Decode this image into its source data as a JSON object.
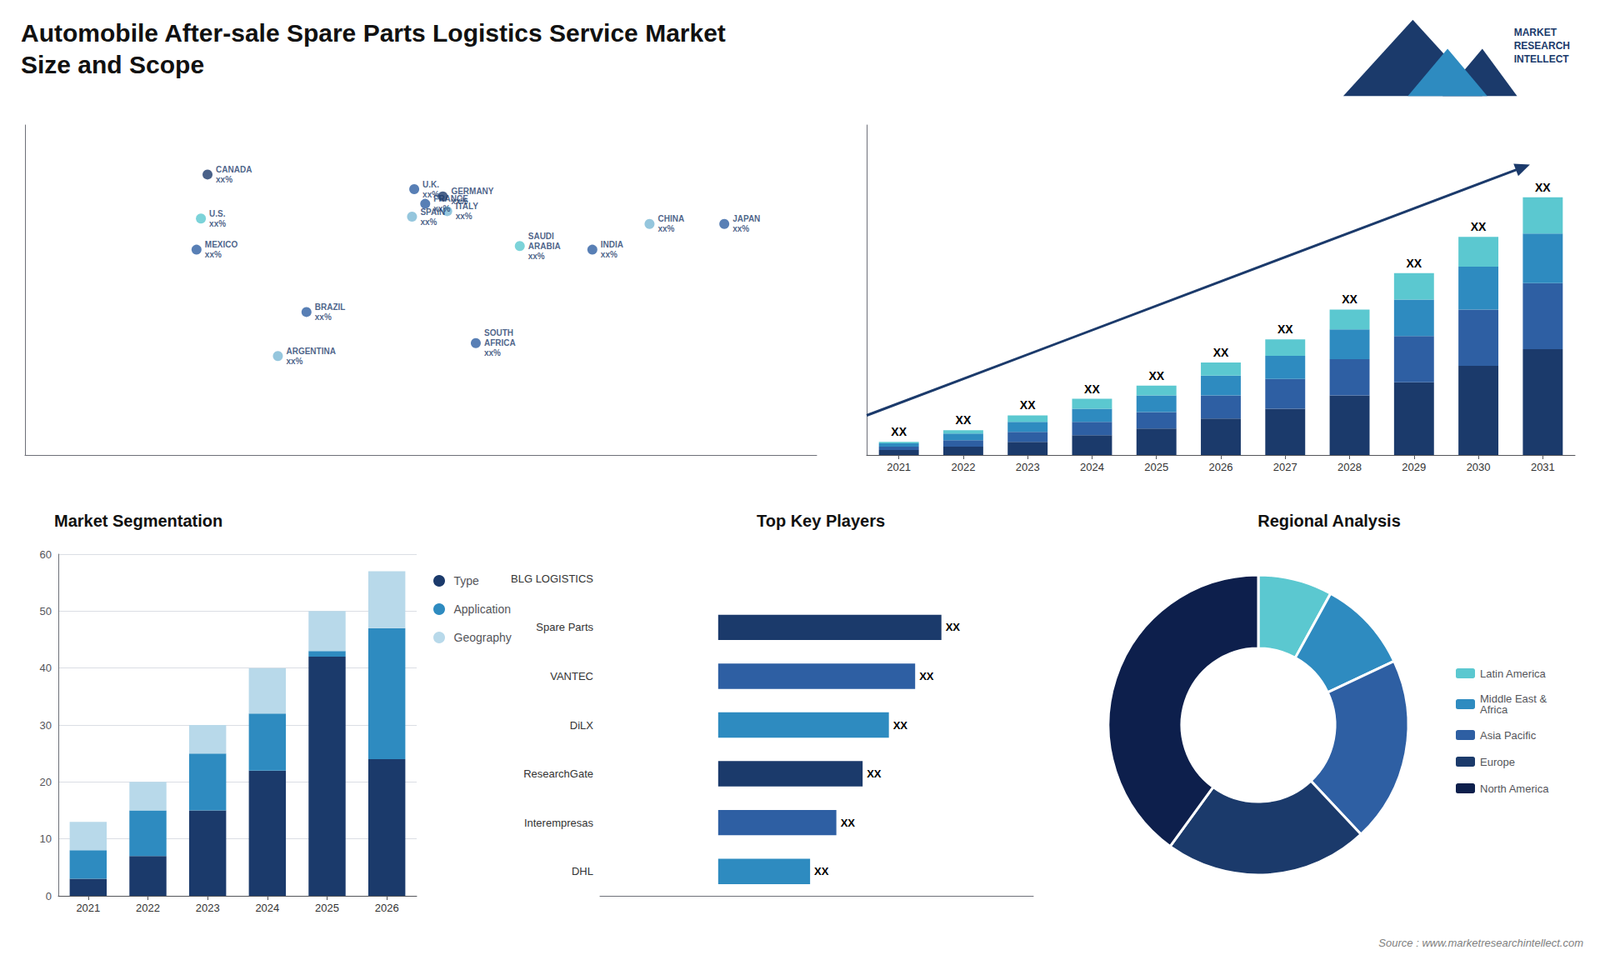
{
  "title": "Automobile After-sale Spare Parts Logistics Service Market\nSize and Scope",
  "annotations": [
    "MARKET\nRESEARCH\nINTELLECT",
    "Source : www.marketresearchintellect.com"
  ],
  "chart_data": [
    {
      "type": "map",
      "labels": [
        "CANADA\nxx%",
        "U.S.\nxx%",
        "MEXICO\nxx%",
        "BRAZIL\nxx%",
        "ARGENTINA\nxx%",
        "U.K.\nxx%",
        "FRANCE\nxx%",
        "SPAIN\nxx%",
        "GERMANY\nxx%",
        "ITALY\nxx%",
        "SAUDI\nARABIA\nxx%",
        "SOUTH\nAFRICA\nxx%",
        "INDIA\nxx%",
        "CHINA\nxx%",
        "JAPAN\nxx%"
      ],
      "x": [
        -97,
        -100,
        -102,
        -52,
        -65,
        -3,
        2,
        -4,
        10,
        12,
        45,
        25,
        78,
        104,
        138
      ],
      "values": [
        63,
        39,
        22,
        -12,
        -36,
        55,
        47,
        40,
        51,
        43,
        24,
        -29,
        22,
        36,
        36
      ],
      "colors": [
        "#1b3a6b",
        "#5bc8d0",
        "#2e5fa3",
        "#2e5fa3",
        "#7ab8d4",
        "#2e5fa3",
        "#2e5fa3",
        "#7ab8d4",
        "#1b3a6b",
        "#7ab8d4",
        "#5bc8d0",
        "#2e5fa3",
        "#2e5fa3",
        "#7ab8d4",
        "#2e5fa3"
      ],
      "xlim": [
        -180,
        180
      ],
      "ylim": [
        -90,
        90
      ],
      "tick_labels": false,
      "grid": false
    },
    {
      "type": "bar",
      "stacked": true,
      "categories": [
        "2021",
        "2022",
        "2023",
        "2024",
        "2025",
        "2026",
        "2027",
        "2028",
        "2029",
        "2030",
        "2031"
      ],
      "series": [
        {
          "color": "#1b3a6b",
          "values": [
            1.5,
            2.5,
            4,
            6,
            8,
            11,
            14,
            18,
            22,
            27,
            32
          ]
        },
        {
          "color": "#2e5fa3",
          "values": [
            1,
            2,
            3,
            4,
            5,
            7,
            9,
            11,
            14,
            17,
            20
          ]
        },
        {
          "color": "#2e8bc0",
          "values": [
            1,
            2,
            3,
            4,
            5,
            6,
            7,
            9,
            11,
            13,
            15
          ]
        },
        {
          "color": "#5bc8d0",
          "values": [
            0.5,
            1,
            2,
            3,
            3,
            4,
            5,
            6,
            8,
            9,
            11
          ]
        }
      ],
      "total_labels": [
        "XX",
        "XX",
        "XX",
        "XX",
        "XX",
        "XX",
        "XX",
        "XX",
        "XX",
        "XX",
        "XX"
      ],
      "ylim": [
        0,
        99.84
      ],
      "yticks": [],
      "tick_labels": "x",
      "grid": false
    },
    {
      "type": "bar",
      "stacked": true,
      "title": "Market Segmentation",
      "categories": [
        "2021",
        "2022",
        "2023",
        "2024",
        "2025",
        "2026"
      ],
      "series": [
        {
          "name": "Type",
          "color": "#1b3a6b",
          "values": [
            3,
            7,
            15,
            22,
            42,
            24
          ]
        },
        {
          "name": "Application",
          "color": "#2e8bc0",
          "values": [
            5,
            8,
            10,
            10,
            1,
            23
          ]
        },
        {
          "name": "Geography",
          "color": "#b8d9ea",
          "values": [
            5,
            5,
            5,
            8,
            7,
            10
          ]
        }
      ],
      "ylim": [
        0,
        60
      ],
      "yticks": [
        0,
        10,
        20,
        30,
        40,
        50,
        60
      ],
      "grid": true,
      "legend": "right"
    },
    {
      "type": "bar",
      "orientation": "horizontal",
      "title": "Top Key Players",
      "categories": [
        "BLG LOGISTICS",
        "Spare Parts",
        "VANTEC",
        "DiLX",
        "ResearchGate",
        "Interempresas",
        "DHL"
      ],
      "values": [
        0,
        8.5,
        7.5,
        6.5,
        5.5,
        4.5,
        3.5
      ],
      "value_labels": [
        null,
        "XX",
        "XX",
        "XX",
        "XX",
        "XX",
        "XX"
      ],
      "colors": [
        "#1b3a6b",
        "#1b3a6b",
        "#2e5fa3",
        "#2e8bc0",
        "#1b3a6b",
        "#2e5fa3",
        "#2e8bc0"
      ],
      "xlim": [
        -4.5,
        12
      ],
      "xticks": [],
      "tick_labels": "y",
      "grid": false
    },
    {
      "type": "pie",
      "title": "Regional Analysis",
      "categories": [
        "Latin America",
        "Middle East &\nAfrica",
        "Asia Pacific",
        "Europe",
        "North America"
      ],
      "values": [
        8,
        10,
        20,
        22,
        40
      ],
      "colors": [
        "#5bc8d0",
        "#2e8bc0",
        "#2e5fa3",
        "#1b3a6b",
        "#0d1f4c"
      ],
      "legend": "right"
    }
  ]
}
